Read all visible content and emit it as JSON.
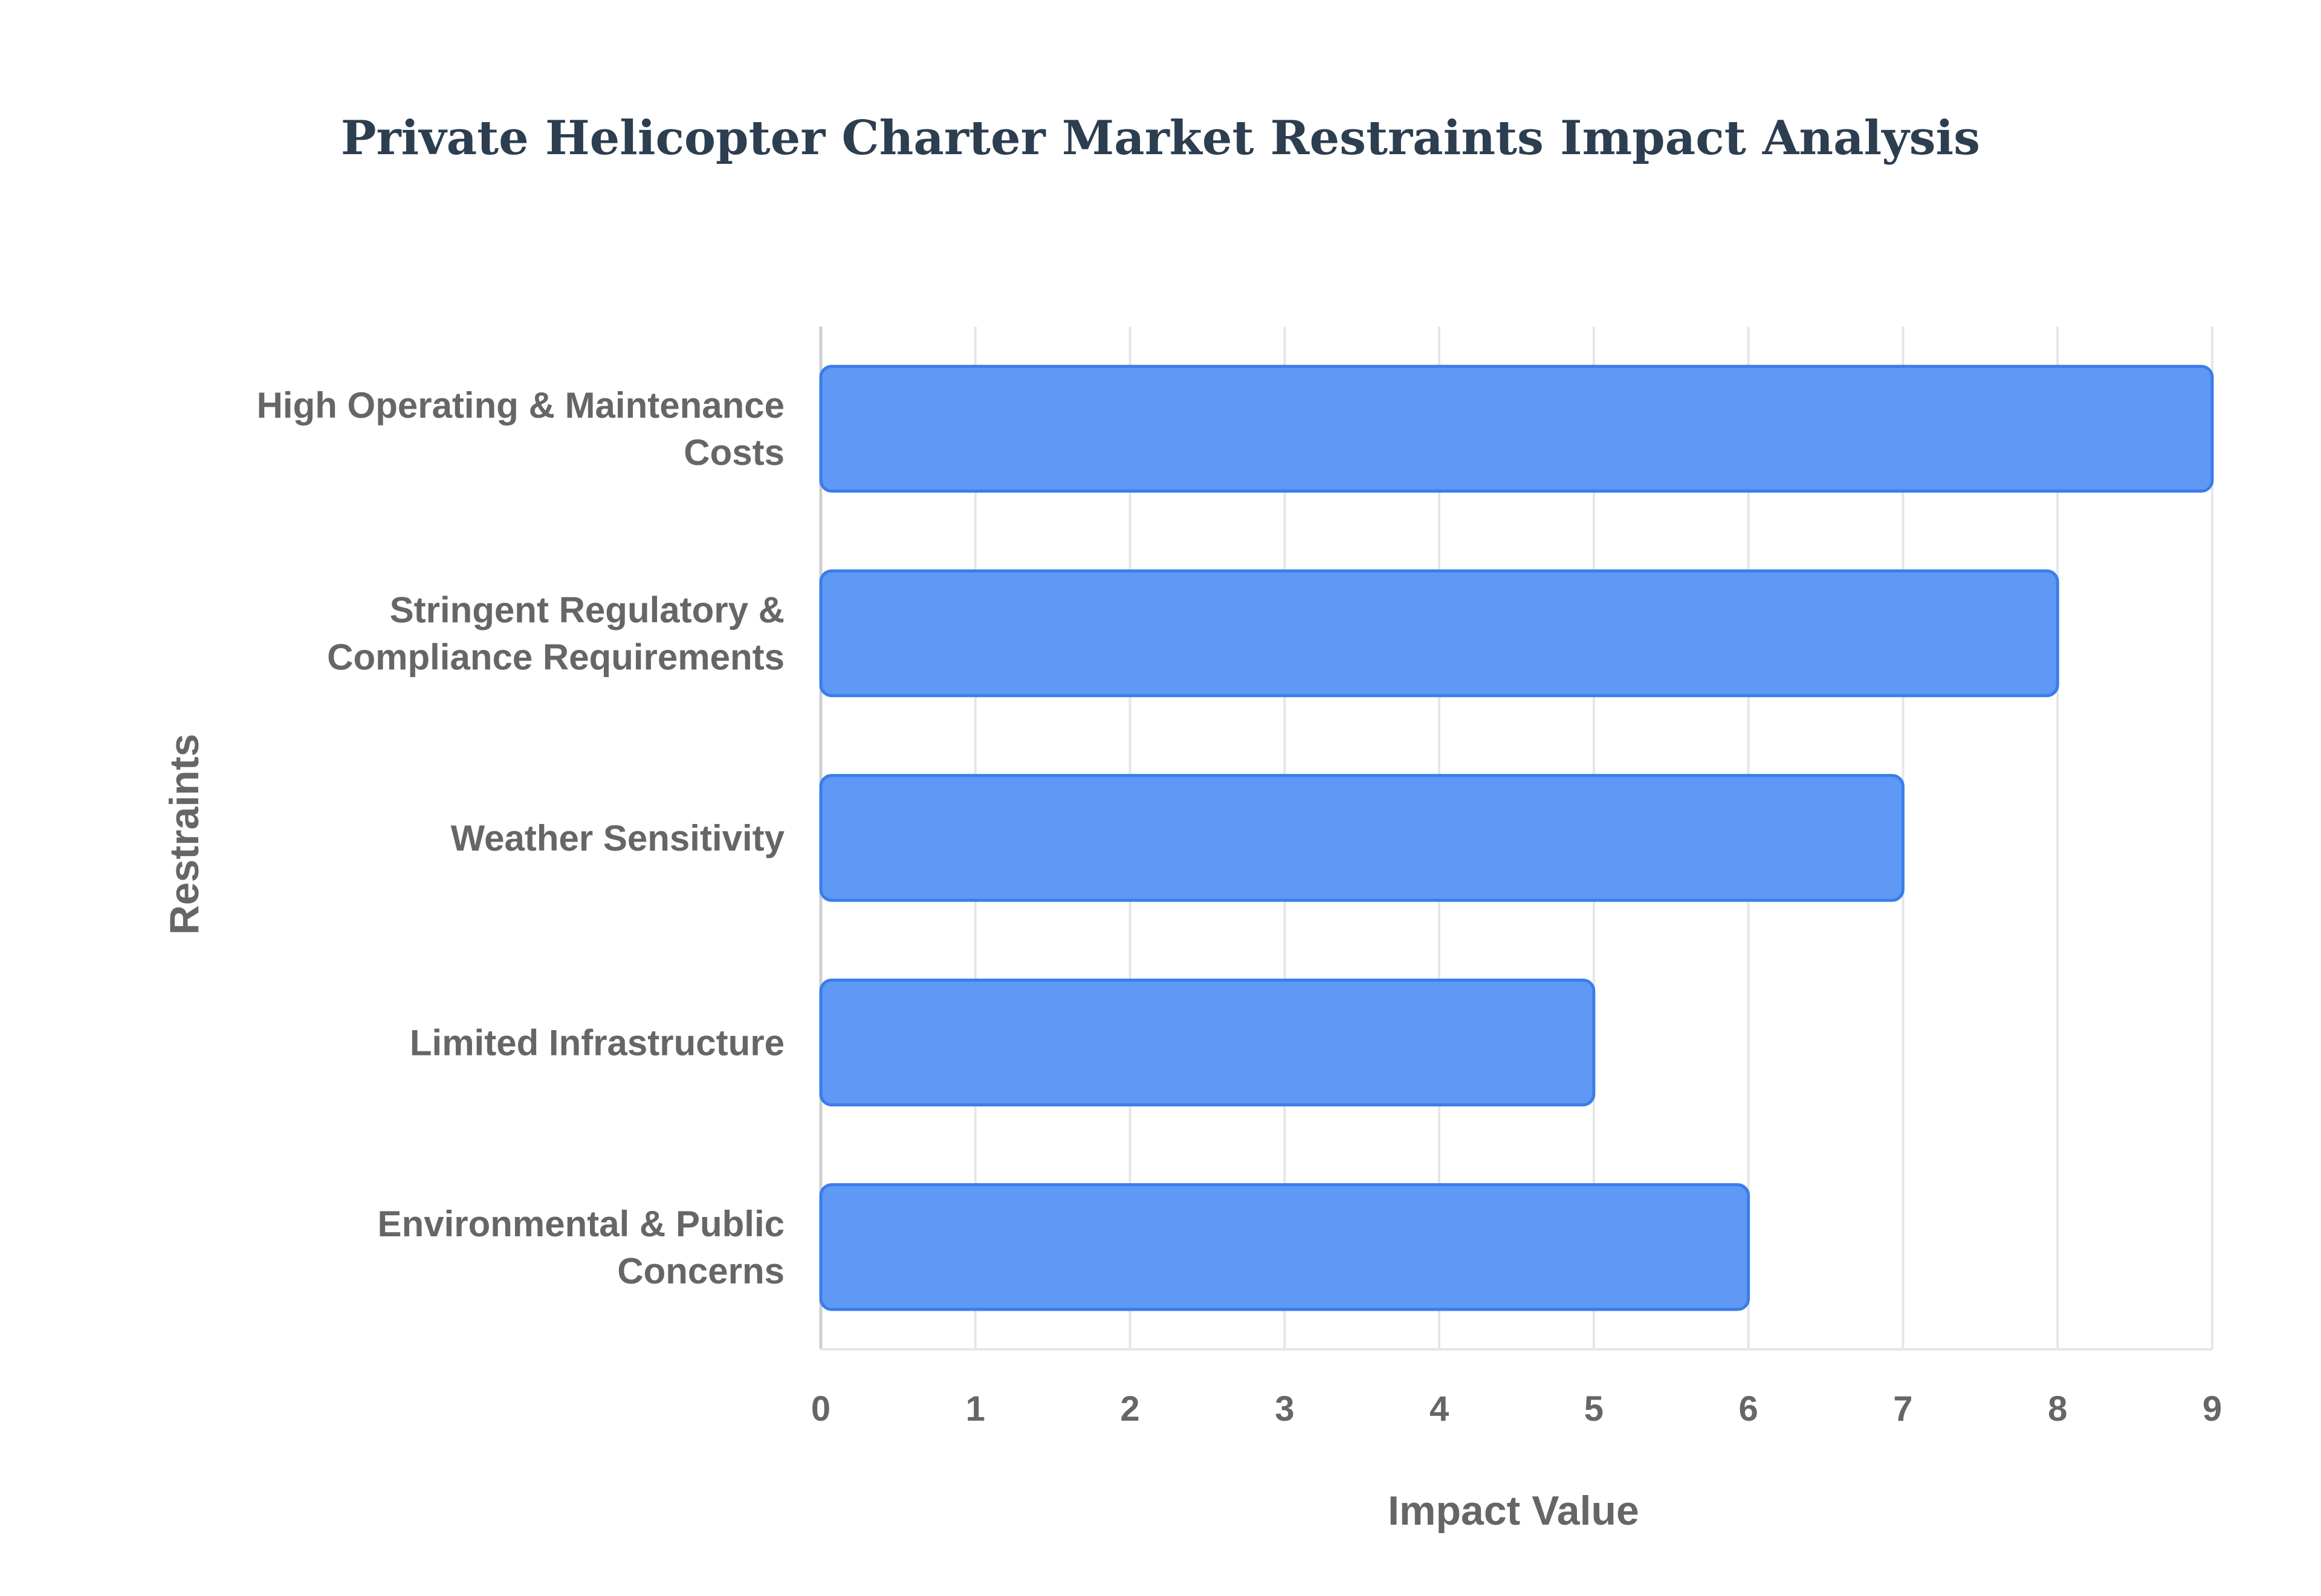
{
  "chart_data": {
    "type": "bar",
    "orientation": "horizontal",
    "title": "Private Helicopter Charter Market Restraints Impact Analysis",
    "xlabel": "Impact Value",
    "ylabel": "Restraints",
    "categories": [
      [
        "High Operating & Maintenance",
        "Costs"
      ],
      [
        "Stringent Regulatory &",
        "Compliance Requirements"
      ],
      [
        "Weather Sensitivity"
      ],
      [
        "Limited Infrastructure"
      ],
      [
        "Environmental & Public",
        "Concerns"
      ]
    ],
    "values": [
      9,
      8,
      7,
      5,
      6
    ],
    "xlim": [
      0,
      9
    ],
    "xticks": [
      "0",
      "1",
      "2",
      "3",
      "4",
      "5",
      "6",
      "7",
      "8",
      "9"
    ],
    "grid": true,
    "legend": "none",
    "colors": {
      "bar_fill": "#5f98f5",
      "bar_stroke": "#3b7de8",
      "title": "#2c3e50",
      "text": "#666666"
    }
  }
}
